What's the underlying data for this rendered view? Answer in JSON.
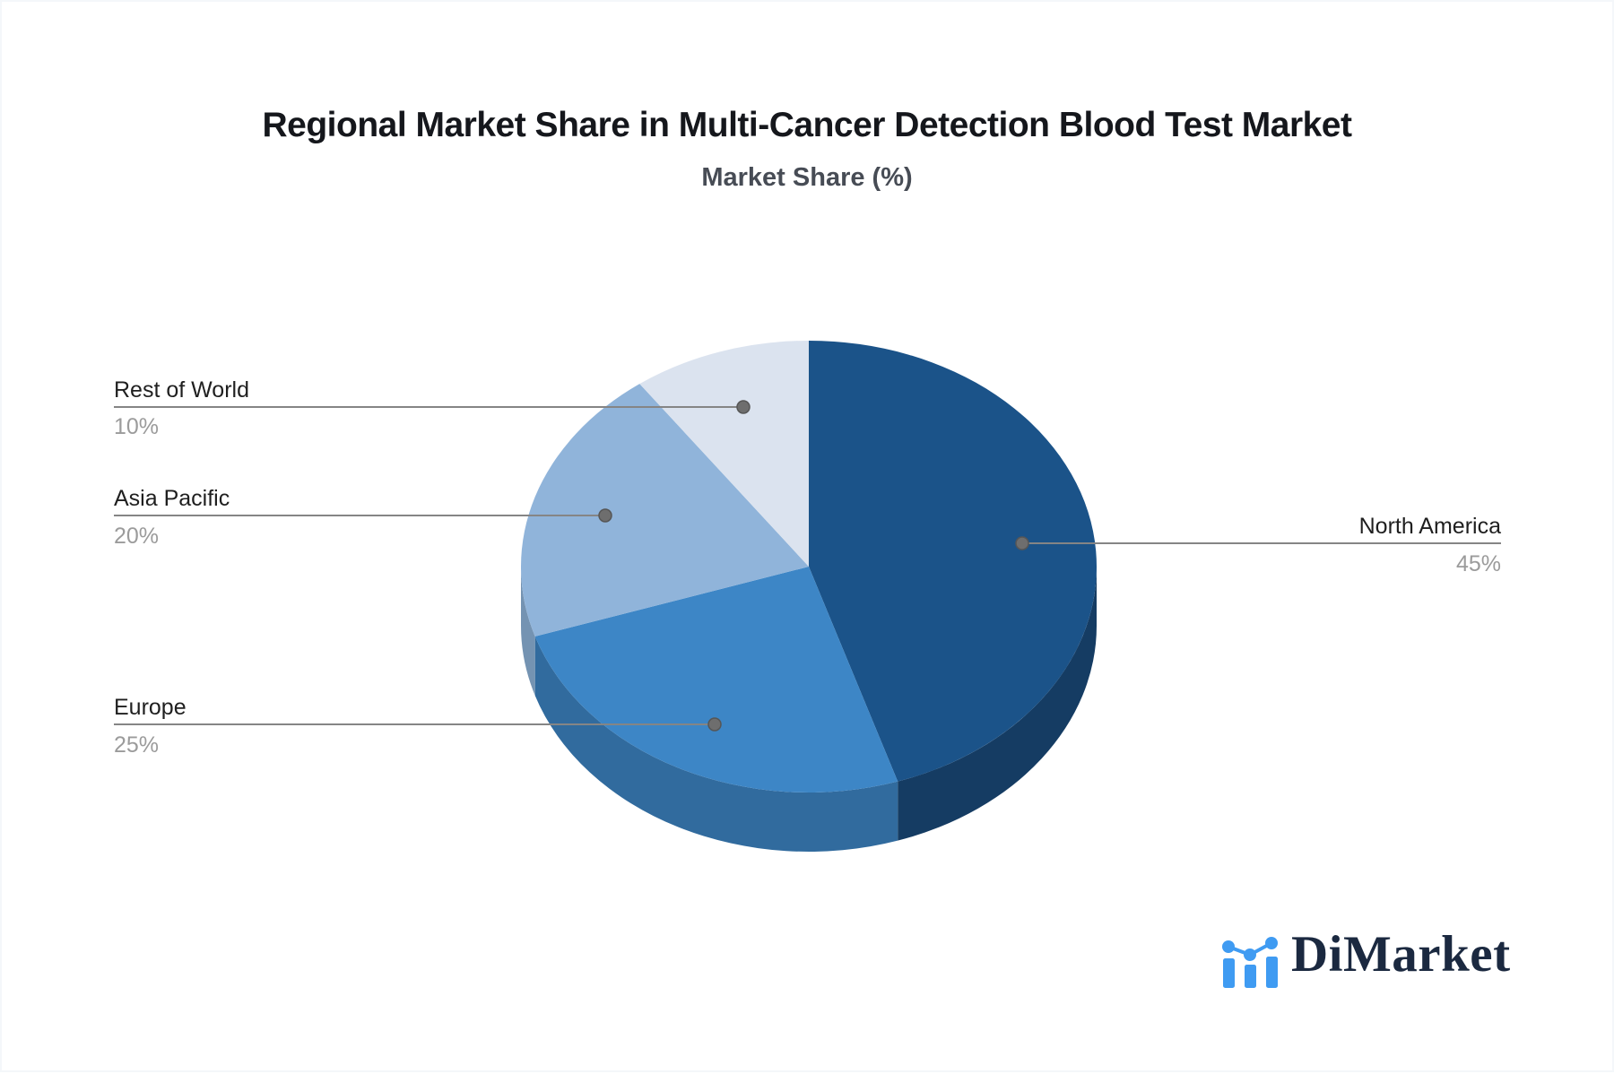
{
  "header": {
    "title": "Regional Market Share in Multi-Cancer Detection Blood Test Market",
    "subtitle": "Market Share (%)"
  },
  "chart_data": {
    "type": "pie",
    "title": "Regional Market Share in Multi-Cancer Detection Blood Test Market",
    "subtitle": "Market Share (%)",
    "unit": "%",
    "effect": "3d",
    "start_angle": "12-oclock-clockwise",
    "legend_position": "callout-labels",
    "slices": [
      {
        "label": "North America",
        "value": 45,
        "display": "45%",
        "color": "#1B5389",
        "side_color": "#153C63"
      },
      {
        "label": "Europe",
        "value": 25,
        "display": "25%",
        "color": "#3D86C6",
        "side_color": "#316B9E"
      },
      {
        "label": "Asia Pacific",
        "value": 20,
        "display": "20%",
        "color": "#90B4DA",
        "side_color": "#7493B2"
      },
      {
        "label": "Rest of World",
        "value": 10,
        "display": "10%",
        "color": "#DBE3EF",
        "side_color": "#AFB9C9"
      }
    ]
  },
  "branding": {
    "logo_text": "DiMarket",
    "logo_text_color": "#1B2940",
    "logo_icon_color": "#3F9BF2",
    "icon": "bar-chart-with-trendline-icon"
  },
  "colors": {
    "background": "#FFFFFF",
    "title": "#15171C",
    "subtitle": "#474C55",
    "label": "#1F1F1F",
    "percent": "#9B9B9B",
    "leader_line": "#858585",
    "leader_dot": "#6E6E6E"
  }
}
